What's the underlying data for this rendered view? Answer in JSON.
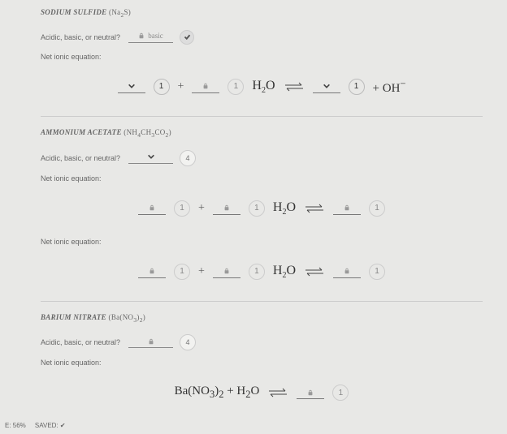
{
  "colors": {
    "background": "#e8e8e6",
    "text_primary": "#555",
    "text_muted": "#888",
    "text_dark": "#333",
    "divider": "#ccc",
    "circle_border": "#ccc"
  },
  "sections": [
    {
      "id": "sodium",
      "title_name": "SODIUM SULFIDE",
      "title_formula_html": "(Na<sub>2</sub>S)",
      "question": {
        "label": "Acidic, basic, or neutral?",
        "answer_type": "locked",
        "answer_value": "basic",
        "status": "check"
      },
      "sublabel": "Net ionic equation:",
      "equations": [
        {
          "slots": [
            {
              "type": "blank-chev"
            },
            {
              "type": "coef",
              "value": "1",
              "style": "dark"
            },
            {
              "type": "plus"
            },
            {
              "type": "blank-lock"
            },
            {
              "type": "coef",
              "value": "1",
              "style": "faint"
            },
            {
              "type": "h2o"
            },
            {
              "type": "equil"
            },
            {
              "type": "blank-chev"
            },
            {
              "type": "coef",
              "value": "1",
              "style": "dark"
            },
            {
              "type": "text",
              "value_html": "+ OH<sup>−</sup>"
            }
          ]
        }
      ]
    },
    {
      "id": "ammonium",
      "title_name": "AMMONIUM ACETATE",
      "title_formula_html": "(NH<sub>4</sub>CH<sub>3</sub>CO<sub>2</sub>)",
      "question": {
        "label": "Acidic, basic, or neutral?",
        "answer_type": "dropdown",
        "answer_value": "",
        "status": "attempt",
        "attempt_value": "4"
      },
      "sublabel": "Net ionic equation:",
      "equations": [
        {
          "slots": [
            {
              "type": "blank-lock"
            },
            {
              "type": "coef",
              "value": "1",
              "style": "faint"
            },
            {
              "type": "plus"
            },
            {
              "type": "blank-lock"
            },
            {
              "type": "coef",
              "value": "1",
              "style": "faint"
            },
            {
              "type": "h2o"
            },
            {
              "type": "equil"
            },
            {
              "type": "blank-lock"
            },
            {
              "type": "coef",
              "value": "1",
              "style": "faint"
            }
          ]
        },
        {
          "pre_label": "Net ionic equation:",
          "slots": [
            {
              "type": "blank-lock"
            },
            {
              "type": "coef",
              "value": "1",
              "style": "faint"
            },
            {
              "type": "plus"
            },
            {
              "type": "blank-lock"
            },
            {
              "type": "coef",
              "value": "1",
              "style": "faint"
            },
            {
              "type": "h2o"
            },
            {
              "type": "equil"
            },
            {
              "type": "blank-lock"
            },
            {
              "type": "coef",
              "value": "1",
              "style": "faint"
            }
          ]
        }
      ]
    },
    {
      "id": "barium",
      "title_name": "BARIUM NITRATE",
      "title_formula_html": "(Ba(NO<sub>3</sub>)<sub>2</sub>)",
      "question": {
        "label": "Acidic, basic, or neutral?",
        "answer_type": "locked",
        "answer_value": "",
        "status": "attempt",
        "attempt_value": "4"
      },
      "sublabel": "Net ionic equation:",
      "equations": [
        {
          "slots": [
            {
              "type": "text",
              "value_html": "Ba(NO<sub>3</sub>)<sub>2</sub> + H<sub>2</sub>O"
            },
            {
              "type": "equil"
            },
            {
              "type": "blank-lock"
            },
            {
              "type": "coef",
              "value": "1",
              "style": "faint"
            }
          ]
        }
      ]
    }
  ],
  "footer": {
    "left": "E: 56%",
    "saved": "SAVED:"
  }
}
